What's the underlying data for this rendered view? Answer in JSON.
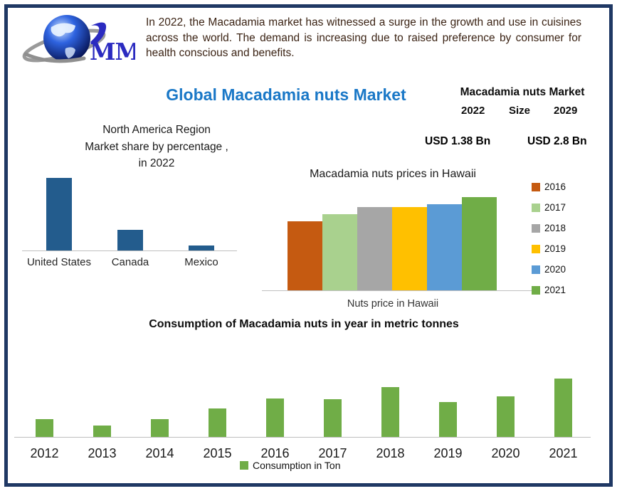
{
  "frame": {
    "border_color": "#1F3864"
  },
  "logo": {
    "brand": "MMR",
    "brand_color": "#2B2BC0"
  },
  "intro": {
    "text": "In 2022, the Macadamia market has witnessed a surge in the growth and use in cuisines across the world. The demand is increasing due to raised preference by consumer for health conscious and benefits."
  },
  "main_title": {
    "text": "Global Macadamia nuts Market",
    "color": "#1A78C7"
  },
  "market_size": {
    "heading": "Macadamia nuts Market",
    "size_word": "Size",
    "year_start": "2022",
    "year_end": "2029",
    "value_start": "USD 1.38 Bn",
    "value_end": "USD 2.8 Bn",
    "value_color": "#2076C0"
  },
  "chart_data": [
    {
      "name": "north-america-share",
      "type": "bar",
      "title": "North America Region Market share by percentage , in 2022",
      "title_lines": [
        "North America Region",
        "Market share by percentage ,",
        "in 2022"
      ],
      "categories": [
        "United States",
        "Canada",
        "Mexico"
      ],
      "values": [
        74,
        21,
        5
      ],
      "value_note": "percent, estimated from bar heights (no axis labels shown)",
      "ylim": [
        0,
        80
      ],
      "bar_color": "#235C8D",
      "grid": false,
      "legend": "none"
    },
    {
      "name": "hawaii-prices",
      "type": "bar",
      "title": "Macadamia nuts prices in Hawaii",
      "xlabel": "Nuts price in Hawaii",
      "categories": [
        "2016",
        "2017",
        "2018",
        "2019",
        "2020",
        "2021"
      ],
      "values": [
        74,
        82,
        89,
        89,
        92,
        100
      ],
      "value_note": "relative index, estimated from bar heights (no axis labels shown)",
      "ylim": [
        0,
        100
      ],
      "colors": [
        "#C55A11",
        "#A9D18E",
        "#A6A6A6",
        "#FFC000",
        "#5B9BD5",
        "#70AD47"
      ],
      "grid": false,
      "legend_position": "right"
    },
    {
      "name": "consumption",
      "type": "bar",
      "title": "Consumption of Macadamia nuts in year in metric tonnes",
      "categories": [
        "2012",
        "2013",
        "2014",
        "2015",
        "2016",
        "2017",
        "2018",
        "2019",
        "2020",
        "2021"
      ],
      "values": [
        30,
        20,
        30,
        49,
        66,
        65,
        85,
        60,
        70,
        100
      ],
      "value_note": "relative, estimated from bar heights (no axis labels shown)",
      "ylim": [
        0,
        100
      ],
      "bar_color": "#70AD47",
      "legend_label": "Consumption in Ton",
      "grid": false,
      "legend_position": "bottom"
    }
  ]
}
